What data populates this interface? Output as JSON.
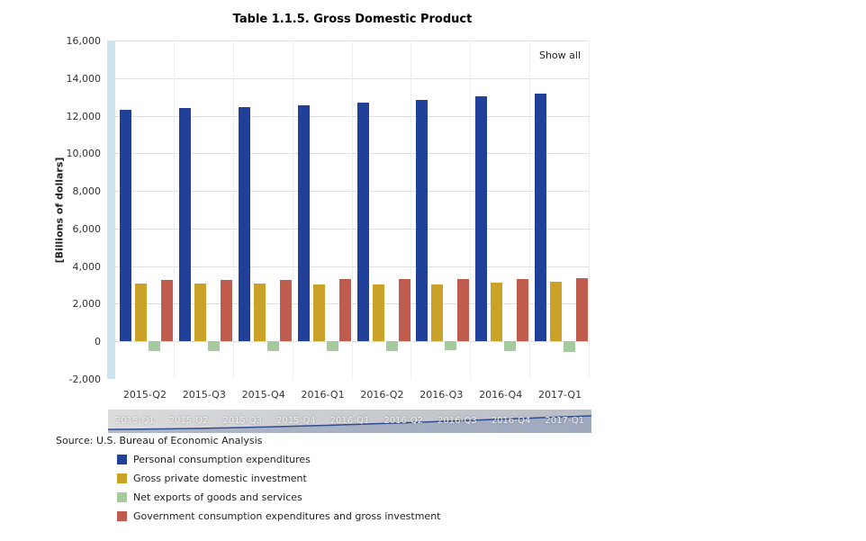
{
  "title": "Table 1.1.5. Gross Domestic Product",
  "show_all_label": "Show all",
  "source": "Source: U.S. Bureau of Economic Analysis",
  "chart_data": {
    "type": "bar",
    "title": "Table 1.1.5. Gross Domestic Product",
    "xlabel": "",
    "ylabel": "[Billions of dollars]",
    "ylim": [
      -2000,
      16000
    ],
    "grid": true,
    "legend_position": "bottom-left",
    "axis_line_color": "#cbe4f0",
    "grid_color": "#e0e0e0",
    "yticks": [
      {
        "value": 16000,
        "label": "16,000"
      },
      {
        "value": 14000,
        "label": "14,000"
      },
      {
        "value": 12000,
        "label": "12,000"
      },
      {
        "value": 10000,
        "label": "10,000"
      },
      {
        "value": 8000,
        "label": "8,000"
      },
      {
        "value": 6000,
        "label": "6,000"
      },
      {
        "value": 4000,
        "label": "4,000"
      },
      {
        "value": 2000,
        "label": "2,000"
      },
      {
        "value": 0,
        "label": "0"
      },
      {
        "value": -2000,
        "label": "-2,000"
      }
    ],
    "categories": [
      "2015-Q2",
      "2015-Q3",
      "2015-Q4",
      "2016-Q1",
      "2016-Q2",
      "2016-Q3",
      "2016-Q4",
      "2017-Q1"
    ],
    "series": [
      {
        "name": "Personal consumption expenditures",
        "color": "#21409a",
        "values": [
          12300,
          12390,
          12450,
          12540,
          12705,
          12830,
          13010,
          13175
        ]
      },
      {
        "name": "Gross private domestic investment",
        "color": "#c9a227",
        "values": [
          3065,
          3085,
          3070,
          3030,
          3005,
          3040,
          3110,
          3155
        ]
      },
      {
        "name": "Net exports of goods and services",
        "color": "#a4ca9e",
        "values": [
          -500,
          -520,
          -530,
          -505,
          -495,
          -480,
          -525,
          -570
        ]
      },
      {
        "name": "Government consumption expenditures and gross investment",
        "color": "#c05c4e",
        "values": [
          3250,
          3270,
          3285,
          3300,
          3310,
          3320,
          3335,
          3360
        ]
      }
    ]
  },
  "navigator": {
    "labels": [
      "2015-Q1",
      "2015-Q2",
      "2015-Q3",
      "2015-Q4",
      "2016-Q1",
      "2016-Q2",
      "2016-Q3",
      "2016-Q4",
      "2017-Q1"
    ],
    "line_color": "#2f4d8f",
    "area_color": "#8d99b8"
  }
}
